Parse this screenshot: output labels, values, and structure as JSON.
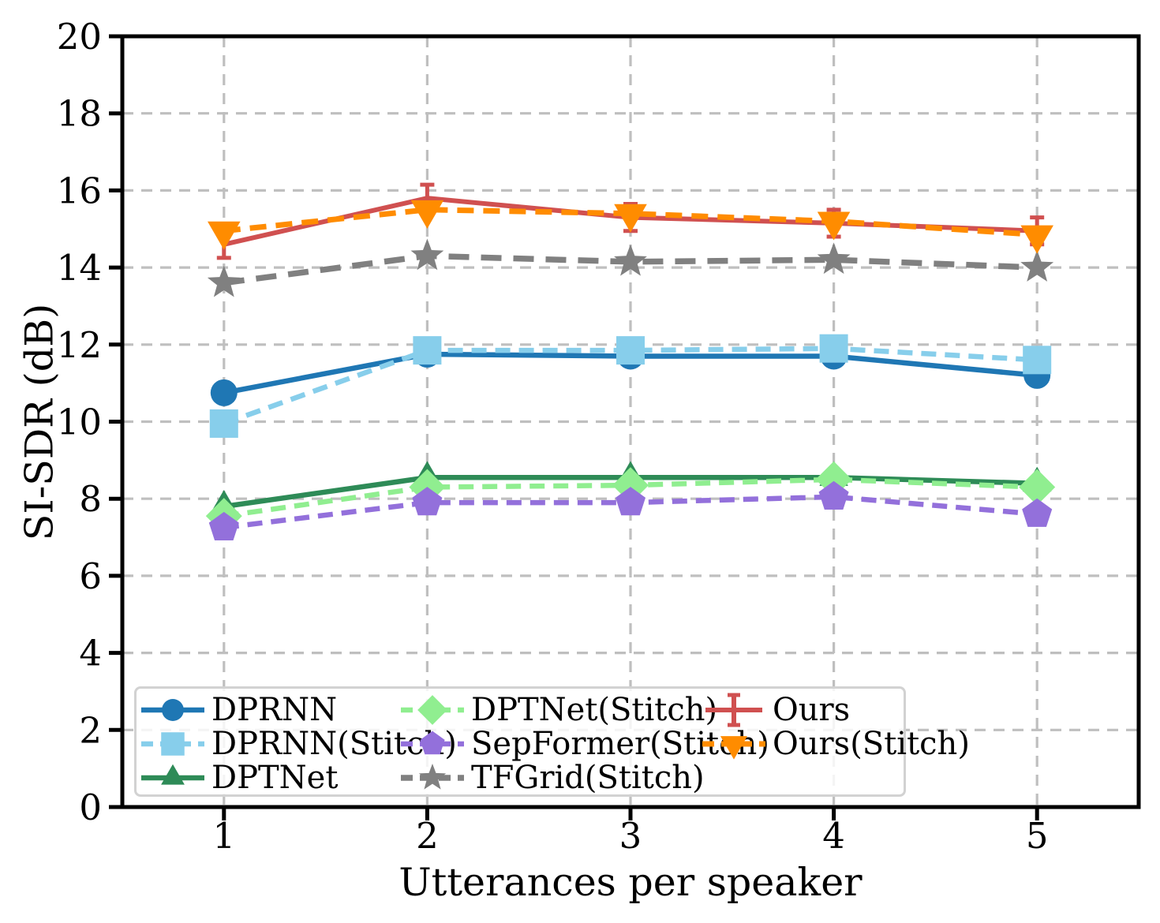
{
  "figure": {
    "background": "#ffffff",
    "grid_color": "#bfbfbf",
    "axis_color": "#000000"
  },
  "chart_data": {
    "type": "line",
    "title": "",
    "xlabel": "Utterances per speaker",
    "ylabel": "SI-SDR (dB)",
    "x": [
      1,
      2,
      3,
      4,
      5
    ],
    "xtick_labels": [
      "1",
      "2",
      "3",
      "4",
      "5"
    ],
    "yticks": [
      0,
      2,
      4,
      6,
      8,
      10,
      12,
      14,
      16,
      18,
      20
    ],
    "xlim": [
      0.5,
      5.5
    ],
    "ylim": [
      0,
      20
    ],
    "grid": true,
    "series": [
      {
        "name": "DPRNN",
        "color": "#1f77b4",
        "linestyle": "solid",
        "marker": "circle",
        "values": [
          10.75,
          11.75,
          11.7,
          11.7,
          11.2
        ]
      },
      {
        "name": "DPRNN(Stitch)",
        "color": "#87ceeb",
        "linestyle": "dashed",
        "marker": "square",
        "values": [
          9.95,
          11.85,
          11.85,
          11.9,
          11.6
        ]
      },
      {
        "name": "DPTNet",
        "color": "#2e8b57",
        "linestyle": "solid",
        "marker": "triangle-up",
        "values": [
          7.8,
          8.55,
          8.55,
          8.55,
          8.4
        ]
      },
      {
        "name": "DPTNet(Stitch)",
        "color": "#90ee90",
        "linestyle": "dashed",
        "marker": "diamond",
        "values": [
          7.55,
          8.3,
          8.35,
          8.5,
          8.3
        ]
      },
      {
        "name": "SepFormer(Stitch)",
        "color": "#9370db",
        "linestyle": "dashed",
        "marker": "pentagon",
        "values": [
          7.25,
          7.9,
          7.9,
          8.05,
          7.6
        ]
      },
      {
        "name": "TFGrid(Stitch)",
        "color": "#808080",
        "linestyle": "dashed",
        "marker": "star",
        "values": [
          13.6,
          14.3,
          14.15,
          14.2,
          14.0
        ]
      },
      {
        "name": "Ours",
        "color": "#d05050",
        "linestyle": "solid",
        "marker": "errorbar",
        "values": [
          14.6,
          15.8,
          15.3,
          15.15,
          14.95
        ],
        "yerr": 0.35
      },
      {
        "name": "Ours(Stitch)",
        "color": "#ff8c00",
        "linestyle": "dashed",
        "marker": "triangle-down",
        "values": [
          14.95,
          15.5,
          15.4,
          15.2,
          14.85
        ]
      }
    ],
    "legend": {
      "position": "lower-left",
      "columns": [
        [
          "DPRNN",
          "DPRNN(Stitch)",
          "DPTNet"
        ],
        [
          "DPTNet(Stitch)",
          "SepFormer(Stitch)",
          "TFGrid(Stitch)"
        ],
        [
          "Ours",
          "Ours(Stitch)"
        ]
      ]
    }
  }
}
